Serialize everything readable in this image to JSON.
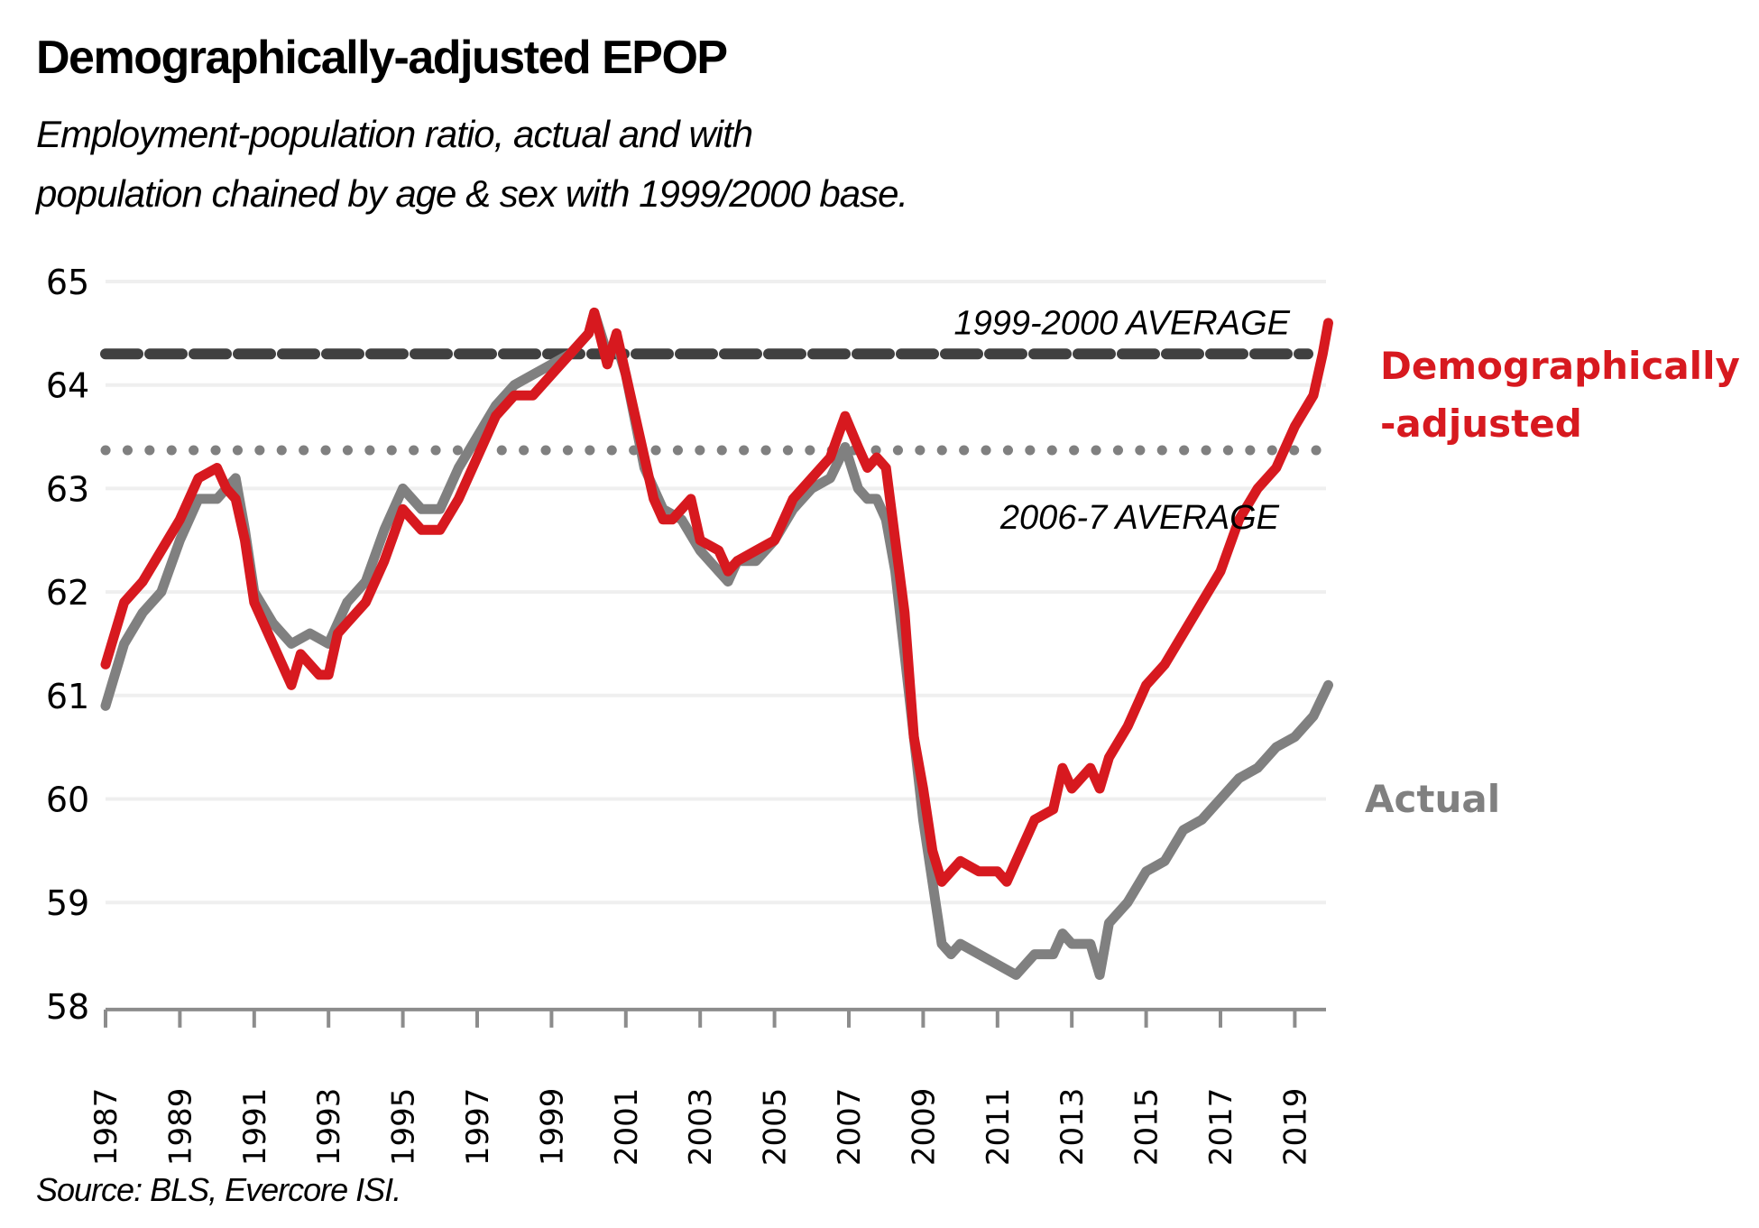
{
  "header": {
    "title": "Demographically-adjusted EPOP",
    "subtitle_line1": "Employment-population ratio, actual and with",
    "subtitle_line2": "population chained by age & sex with 1999/2000  base."
  },
  "footer": {
    "source": "Source: BLS, Evercore ISI."
  },
  "colors": {
    "adjusted": "#D7191F",
    "actual": "#808080",
    "avg_1999_2000": "#404040",
    "avg_2006_7": "#808080",
    "grid": "#EFEFEF",
    "axis": "#8C8C8C"
  },
  "chart_data": {
    "type": "line",
    "title": "Demographically-adjusted EPOP",
    "xlabel": "",
    "ylabel": "",
    "xlim": [
      1987,
      2019.9
    ],
    "ylim": [
      58,
      65
    ],
    "grid": true,
    "yticks": [
      58,
      59,
      60,
      61,
      62,
      63,
      64,
      65
    ],
    "xticks": [
      1987,
      1989,
      1991,
      1993,
      1995,
      1997,
      1999,
      2001,
      2003,
      2005,
      2007,
      2009,
      2011,
      2013,
      2015,
      2017,
      2019
    ],
    "legend": "direct-labels-right",
    "series": [
      {
        "name": "Demographically-adjusted",
        "label_line1": "Demographically",
        "label_line2": "-adjusted",
        "x": [
          1987.0,
          1987.5,
          1988.0,
          1988.5,
          1989.0,
          1989.5,
          1990.0,
          1990.25,
          1990.5,
          1990.75,
          1991.0,
          1991.5,
          1992.0,
          1992.25,
          1992.5,
          1992.75,
          1993.0,
          1993.25,
          1993.5,
          1994.0,
          1994.5,
          1995.0,
          1995.5,
          1996.0,
          1996.5,
          1997.0,
          1997.5,
          1998.0,
          1998.5,
          1999.0,
          1999.5,
          2000.0,
          2000.15,
          2000.5,
          2000.75,
          2001.0,
          2001.25,
          2001.5,
          2001.75,
          2002.0,
          2002.25,
          2002.75,
          2003.0,
          2003.5,
          2003.75,
          2004.0,
          2004.5,
          2005.0,
          2005.5,
          2006.0,
          2006.5,
          2006.9,
          2007.25,
          2007.5,
          2007.75,
          2008.0,
          2008.25,
          2008.5,
          2008.75,
          2009.0,
          2009.25,
          2009.5,
          2009.75,
          2010.0,
          2010.5,
          2011.0,
          2011.25,
          2011.5,
          2012.0,
          2012.5,
          2012.75,
          2013.0,
          2013.5,
          2013.75,
          2014.0,
          2014.5,
          2015.0,
          2015.5,
          2016.0,
          2016.5,
          2017.0,
          2017.5,
          2018.0,
          2018.5,
          2019.0,
          2019.5,
          2019.75,
          2019.9
        ],
        "values": [
          61.3,
          61.9,
          62.1,
          62.4,
          62.7,
          63.1,
          63.2,
          63.0,
          62.9,
          62.5,
          61.9,
          61.5,
          61.1,
          61.4,
          61.3,
          61.2,
          61.2,
          61.6,
          61.7,
          61.9,
          62.3,
          62.8,
          62.6,
          62.6,
          62.9,
          63.3,
          63.7,
          63.9,
          63.9,
          64.1,
          64.3,
          64.5,
          64.7,
          64.2,
          64.5,
          64.1,
          63.7,
          63.3,
          62.9,
          62.7,
          62.7,
          62.9,
          62.5,
          62.4,
          62.2,
          62.3,
          62.4,
          62.5,
          62.9,
          63.1,
          63.3,
          63.7,
          63.4,
          63.2,
          63.3,
          63.2,
          62.5,
          61.8,
          60.6,
          60.1,
          59.5,
          59.2,
          59.3,
          59.4,
          59.3,
          59.3,
          59.2,
          59.4,
          59.8,
          59.9,
          60.3,
          60.1,
          60.3,
          60.1,
          60.4,
          60.7,
          61.1,
          61.3,
          61.6,
          61.9,
          62.2,
          62.7,
          63.0,
          63.2,
          63.6,
          63.9,
          64.3,
          64.6
        ]
      },
      {
        "name": "Actual",
        "label_line1": "Actual",
        "x": [
          1987.0,
          1987.5,
          1988.0,
          1988.5,
          1989.0,
          1989.5,
          1990.0,
          1990.5,
          1990.75,
          1991.0,
          1991.5,
          1992.0,
          1992.5,
          1993.0,
          1993.5,
          1994.0,
          1994.5,
          1995.0,
          1995.5,
          1996.0,
          1996.5,
          1997.0,
          1997.5,
          1998.0,
          1998.5,
          1999.0,
          1999.5,
          2000.0,
          2000.15,
          2000.5,
          2000.75,
          2001.0,
          2001.5,
          2002.0,
          2002.5,
          2003.0,
          2003.5,
          2003.75,
          2004.0,
          2004.5,
          2005.0,
          2005.5,
          2006.0,
          2006.5,
          2006.9,
          2007.25,
          2007.5,
          2007.75,
          2008.0,
          2008.25,
          2008.5,
          2008.75,
          2009.0,
          2009.25,
          2009.5,
          2009.75,
          2010.0,
          2010.5,
          2011.0,
          2011.5,
          2012.0,
          2012.5,
          2012.75,
          2013.0,
          2013.5,
          2013.75,
          2014.0,
          2014.5,
          2015.0,
          2015.5,
          2016.0,
          2016.5,
          2017.0,
          2017.5,
          2018.0,
          2018.5,
          2019.0,
          2019.5,
          2019.9
        ],
        "values": [
          60.9,
          61.5,
          61.8,
          62.0,
          62.5,
          62.9,
          62.9,
          63.1,
          62.6,
          62.0,
          61.7,
          61.5,
          61.6,
          61.5,
          61.9,
          62.1,
          62.6,
          63.0,
          62.8,
          62.8,
          63.2,
          63.5,
          63.8,
          64.0,
          64.1,
          64.2,
          64.3,
          64.5,
          64.7,
          64.3,
          64.4,
          64.1,
          63.2,
          62.8,
          62.7,
          62.4,
          62.2,
          62.1,
          62.3,
          62.3,
          62.5,
          62.8,
          63.0,
          63.1,
          63.4,
          63.0,
          62.9,
          62.9,
          62.7,
          62.2,
          61.4,
          60.6,
          59.8,
          59.2,
          58.6,
          58.5,
          58.6,
          58.5,
          58.4,
          58.3,
          58.5,
          58.5,
          58.7,
          58.6,
          58.6,
          58.3,
          58.8,
          59.0,
          59.3,
          59.4,
          59.7,
          59.8,
          60.0,
          60.2,
          60.3,
          60.5,
          60.6,
          60.8,
          61.1
        ]
      }
    ],
    "reference_lines": [
      {
        "name": "1999-2000 AVERAGE",
        "label": "1999-2000 AVERAGE",
        "value": 64.3,
        "style": "dashed"
      },
      {
        "name": "2006-7 AVERAGE",
        "label": "2006-7 AVERAGE",
        "value": 63.37,
        "style": "dotted"
      }
    ]
  }
}
